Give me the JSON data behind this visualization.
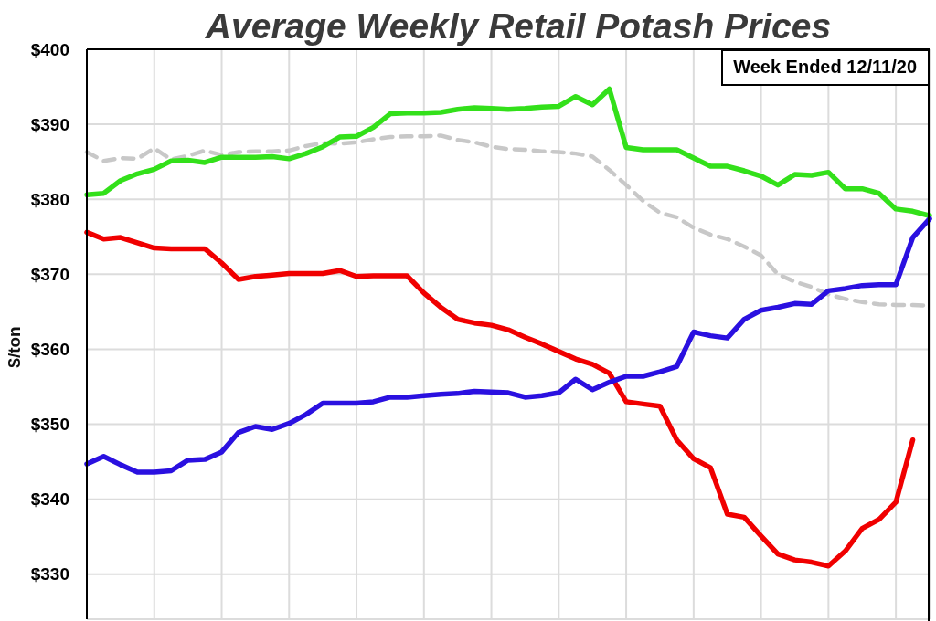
{
  "chart_data": {
    "type": "line",
    "title": "Average Weekly Retail Potash Prices",
    "ylabel": "$/ton",
    "annotations": [
      "Week Ended 12/11/20"
    ],
    "categories": [
      null,
      null,
      null,
      null,
      null,
      null,
      null,
      null,
      null,
      null,
      null,
      null,
      null,
      null,
      null,
      null,
      null,
      null,
      null,
      null,
      null,
      null,
      null,
      null,
      null,
      null,
      null,
      null,
      null,
      null,
      null,
      null,
      null,
      null,
      null,
      null,
      null,
      null,
      null,
      null,
      null,
      null,
      null,
      null,
      null,
      null,
      null,
      null,
      null,
      null,
      null
    ],
    "ylim": [
      324,
      400
    ],
    "yticks": [
      {
        "value": 330,
        "label": "$330"
      },
      {
        "value": 340,
        "label": "$340"
      },
      {
        "value": 350,
        "label": "$350"
      },
      {
        "value": 360,
        "label": "$360"
      },
      {
        "value": 370,
        "label": "$370"
      },
      {
        "value": 380,
        "label": "$380"
      },
      {
        "value": 390,
        "label": "$390"
      },
      {
        "value": 400,
        "label": "$400"
      }
    ],
    "grid": true,
    "tick_labels": "y",
    "series": [
      {
        "color": "#c8c8c8",
        "line_style": "dashed",
        "values": [
          386.3,
          385.1,
          385.5,
          385.4,
          386.8,
          385.3,
          385.8,
          386.5,
          385.9,
          386.3,
          386.4,
          386.4,
          386.5,
          387.1,
          387.5,
          387.4,
          387.6,
          388.0,
          388.3,
          388.4,
          388.4,
          388.5,
          387.9,
          387.6,
          387.0,
          386.7,
          386.6,
          386.4,
          386.3,
          386.1,
          385.7,
          383.9,
          381.9,
          379.8,
          378.2,
          377.6,
          376.2,
          375.3,
          374.7,
          373.7,
          372.5,
          370.0,
          369.0,
          368.3,
          367.3,
          366.7,
          366.3,
          366.0,
          365.9,
          365.9,
          365.8
        ]
      },
      {
        "color": "#33e01a",
        "values": [
          380.6,
          380.8,
          382.5,
          383.4,
          384.0,
          385.1,
          385.2,
          384.9,
          385.6,
          385.6,
          385.6,
          385.7,
          385.4,
          386.1,
          387.0,
          388.3,
          388.4,
          389.6,
          391.4,
          391.5,
          391.5,
          391.6,
          392.0,
          392.2,
          392.1,
          392.0,
          392.1,
          392.3,
          392.4,
          393.7,
          392.6,
          394.7,
          386.9,
          386.6,
          386.6,
          386.6,
          385.5,
          384.4,
          384.4,
          383.8,
          383.1,
          381.9,
          383.3,
          383.2,
          383.6,
          381.4,
          381.4,
          380.8,
          378.7,
          378.4,
          377.8
        ]
      },
      {
        "color": "#f00000",
        "values": [
          375.6,
          374.7,
          374.9,
          374.2,
          373.5,
          373.4,
          373.4,
          373.4,
          371.5,
          369.3,
          369.7,
          369.9,
          370.1,
          370.1,
          370.1,
          370.5,
          369.7,
          369.8,
          369.8,
          369.8,
          367.5,
          365.6,
          364.0,
          363.5,
          363.2,
          362.6,
          361.6,
          360.7,
          359.7,
          358.7,
          358.0,
          356.8,
          353.0,
          352.7,
          352.4,
          347.9,
          345.4,
          344.2,
          338.0,
          337.6,
          335.1,
          332.7,
          331.9,
          331.6,
          331.1,
          333.1,
          336.1,
          337.3,
          339.6,
          347.9,
          null
        ]
      },
      {
        "color": "#2a10e0",
        "values": [
          344.7,
          345.7,
          344.6,
          343.6,
          343.6,
          343.8,
          345.2,
          345.3,
          346.3,
          348.9,
          349.7,
          349.3,
          350.1,
          351.3,
          352.8,
          352.8,
          352.8,
          353.0,
          353.6,
          353.6,
          353.8,
          354.0,
          354.1,
          354.4,
          354.3,
          354.2,
          353.6,
          353.8,
          354.2,
          356.0,
          354.6,
          355.6,
          356.4,
          356.4,
          357.0,
          357.7,
          362.3,
          361.8,
          361.5,
          364.0,
          365.2,
          365.6,
          366.1,
          366.0,
          367.8,
          368.1,
          368.5,
          368.6,
          368.6,
          374.9,
          377.4
        ]
      }
    ]
  }
}
